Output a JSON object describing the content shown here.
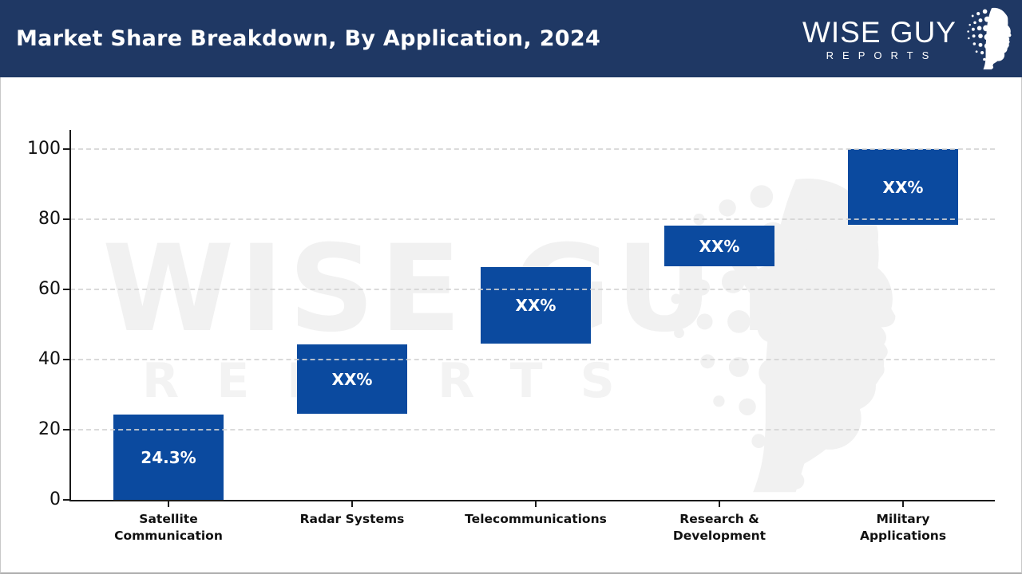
{
  "header": {
    "title": "Market Share Breakdown, By Application, 2024",
    "logo": {
      "name": "WISE GUY",
      "sub": "REPORTS"
    }
  },
  "watermark": {
    "line1": "WISE GUY",
    "line2": "REPORTS"
  },
  "chart_data": {
    "type": "bar",
    "subtype": "waterfall",
    "title": "Market Share Breakdown, By Application, 2024",
    "unit": "percent",
    "categories": [
      {
        "name": "satellite-communication",
        "label_lines": [
          "Satellite",
          "Communication"
        ]
      },
      {
        "name": "radar-systems",
        "label_lines": [
          "Radar Systems"
        ]
      },
      {
        "name": "telecommunications",
        "label_lines": [
          "Telecommunications"
        ]
      },
      {
        "name": "research-development",
        "label_lines": [
          "Research &",
          "Development"
        ]
      },
      {
        "name": "military-applications",
        "label_lines": [
          "Military",
          "Applications"
        ]
      }
    ],
    "segments": [
      {
        "category": "Satellite Communication",
        "start": 0,
        "end": 24.3,
        "label": "24.3%"
      },
      {
        "category": "Radar Systems",
        "start": 24.5,
        "end": 44.3,
        "label": "XX%"
      },
      {
        "category": "Telecommunications",
        "start": 44.5,
        "end": 66.4,
        "label": "XX%"
      },
      {
        "category": "Research & Development",
        "start": 66.6,
        "end": 78.1,
        "label": "XX%"
      },
      {
        "category": "Military Applications",
        "start": 78.3,
        "end": 100,
        "label": "XX%"
      }
    ],
    "yticks": [
      0,
      20,
      40,
      60,
      80,
      100
    ],
    "ylim": [
      0,
      100
    ],
    "grid": "horizontal-dashed",
    "legend": "none",
    "colors": {
      "bar": "#0b4a9f",
      "header_bg": "#1f3864",
      "grid": "#d3d3d3",
      "axis": "#1a1a1a",
      "label_on_bar": "#ffffff",
      "watermark": "#f1f1f1"
    }
  }
}
